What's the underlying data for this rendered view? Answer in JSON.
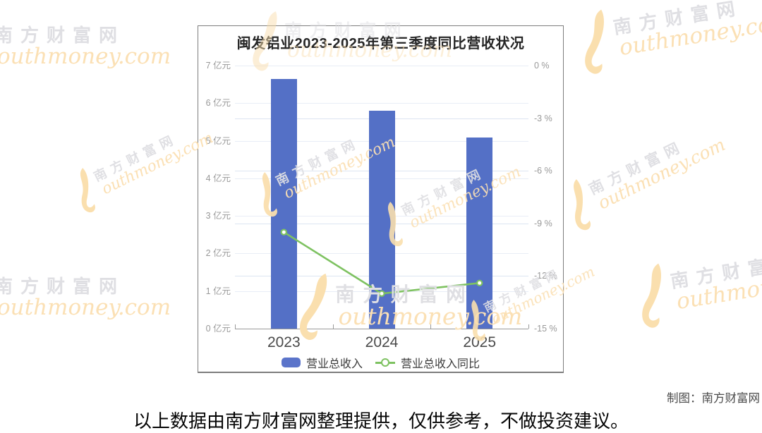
{
  "watermark": {
    "s_letter": "S",
    "cn": "南方财富网",
    "en": "outhmoney.com"
  },
  "chart": {
    "title": "闽发铝业2023-2025年第三季度同比营收状况",
    "legend": [
      {
        "label": "营业总收入"
      },
      {
        "label": "营业总收入同比"
      }
    ]
  },
  "footer": {
    "credit": "制图：南方财富网",
    "disclaimer": "以上数据由南方财富网整理提供，仅供参考，不做投资建议。"
  },
  "chart_data": {
    "type": "bar",
    "title": "闽发铝业2023-2025年第三季度同比营收状况",
    "categories": [
      "2023",
      "2024",
      "2025"
    ],
    "series": [
      {
        "name": "营业总收入",
        "type": "bar",
        "y_axis": "left",
        "unit": "亿元",
        "values": [
          6.65,
          5.8,
          5.08
        ],
        "color": "#5470c6"
      },
      {
        "name": "营业总收入同比",
        "type": "line",
        "y_axis": "right",
        "unit": "%",
        "values": [
          -9.5,
          -13.0,
          -12.4
        ],
        "color": "#7ec261"
      }
    ],
    "left_axis": {
      "min": 0,
      "max": 7,
      "step": 1,
      "unit": "亿元",
      "tick_labels": [
        "0 亿元",
        "1 亿元",
        "2 亿元",
        "3 亿元",
        "4 亿元",
        "5 亿元",
        "6 亿元",
        "7 亿元"
      ]
    },
    "right_axis": {
      "min": -15,
      "max": 0,
      "step": 3,
      "unit": "%",
      "tick_labels": [
        "0 %",
        "-3 %",
        "-6 %",
        "-9 %",
        "-12 %",
        "-15 %"
      ]
    },
    "legend_position": "bottom",
    "grid": true
  }
}
